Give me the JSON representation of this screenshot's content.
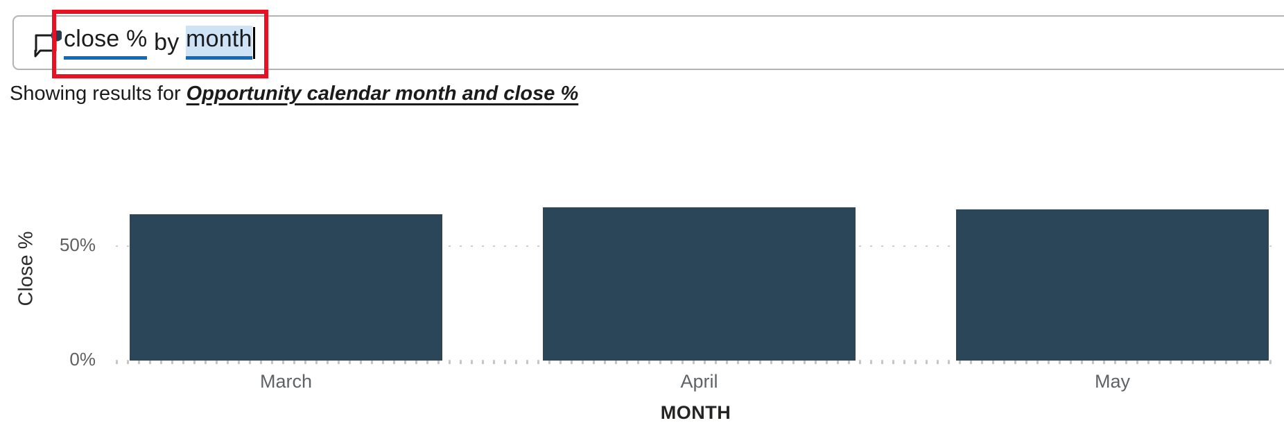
{
  "query_box": {
    "icon": "comment-bubble-icon",
    "segments": [
      {
        "text": "close %",
        "underlined": true,
        "highlighted": false
      },
      {
        "text": " by ",
        "underlined": false,
        "highlighted": false
      },
      {
        "text": "month",
        "underlined": true,
        "highlighted": true
      }
    ],
    "full_query": "close % by month"
  },
  "results_line": {
    "prefix": "Showing results for ",
    "interpretation": "Opportunity calendar month and close %"
  },
  "annotation": {
    "shape": "red-rectangle",
    "color": "#e81123"
  },
  "chart_data": {
    "type": "bar",
    "title": "",
    "categories": [
      "March",
      "April",
      "May"
    ],
    "values": [
      64,
      67,
      66
    ],
    "value_unit": "%",
    "xlabel": "MONTH",
    "ylabel": "Close %",
    "y_ticks": [
      "0%",
      "50%"
    ],
    "ylim": [
      0,
      75
    ],
    "grid": "dotted horizontal lines at 0% and 50%",
    "legend": "none",
    "bar_color": "#2b4559"
  },
  "colors": {
    "bar": "#2b4559",
    "term_underline": "#0f6cbd",
    "term_highlight": "#cfe3f6",
    "annotation_red": "#e81123",
    "axis_text_gray": "#5f6368",
    "gridline": "#cdcdcd"
  }
}
